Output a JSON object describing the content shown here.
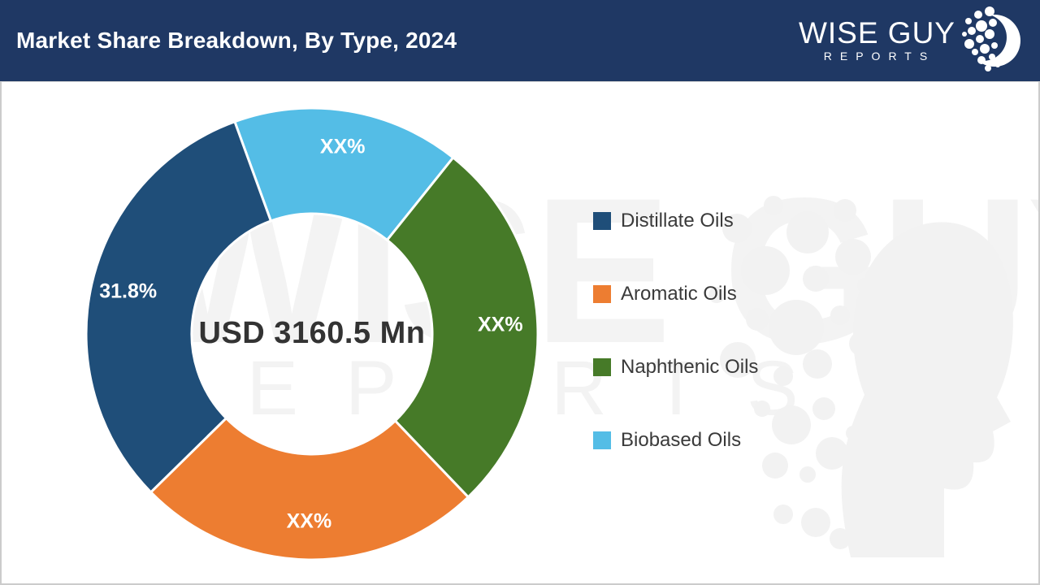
{
  "header": {
    "title": "Market Share Breakdown, By Type, 2024",
    "background_color": "#1F3864"
  },
  "logo": {
    "name": "WISE GUY",
    "subtitle": "REPORTS"
  },
  "watermark": {
    "line1": "WISE GUY",
    "line2": "REPORTS"
  },
  "chart": {
    "center_label": "USD 3160.5 Mn"
  },
  "chart_data": {
    "type": "pie",
    "variant": "donut",
    "title": "Market Share Breakdown, By Type, 2024",
    "center_label": "USD 3160.5 Mn",
    "start_angle_deg": -20,
    "slices": [
      {
        "name": "Biobased Oils",
        "label": "XX%",
        "value_pct": 16.3,
        "color": "#54BDE6"
      },
      {
        "name": "Naphthenic Oils",
        "label": "XX%",
        "value_pct": 27.1,
        "color": "#467A28"
      },
      {
        "name": "Aromatic Oils",
        "label": "XX%",
        "value_pct": 24.8,
        "color": "#ED7D31"
      },
      {
        "name": "Distillate Oils",
        "label": "31.8%",
        "value_pct": 31.8,
        "color": "#1F4E79"
      }
    ],
    "legend_order": [
      "Distillate Oils",
      "Aromatic Oils",
      "Naphthenic Oils",
      "Biobased Oils"
    ],
    "legend_position": "right",
    "label_text_color": "#ffffff"
  }
}
